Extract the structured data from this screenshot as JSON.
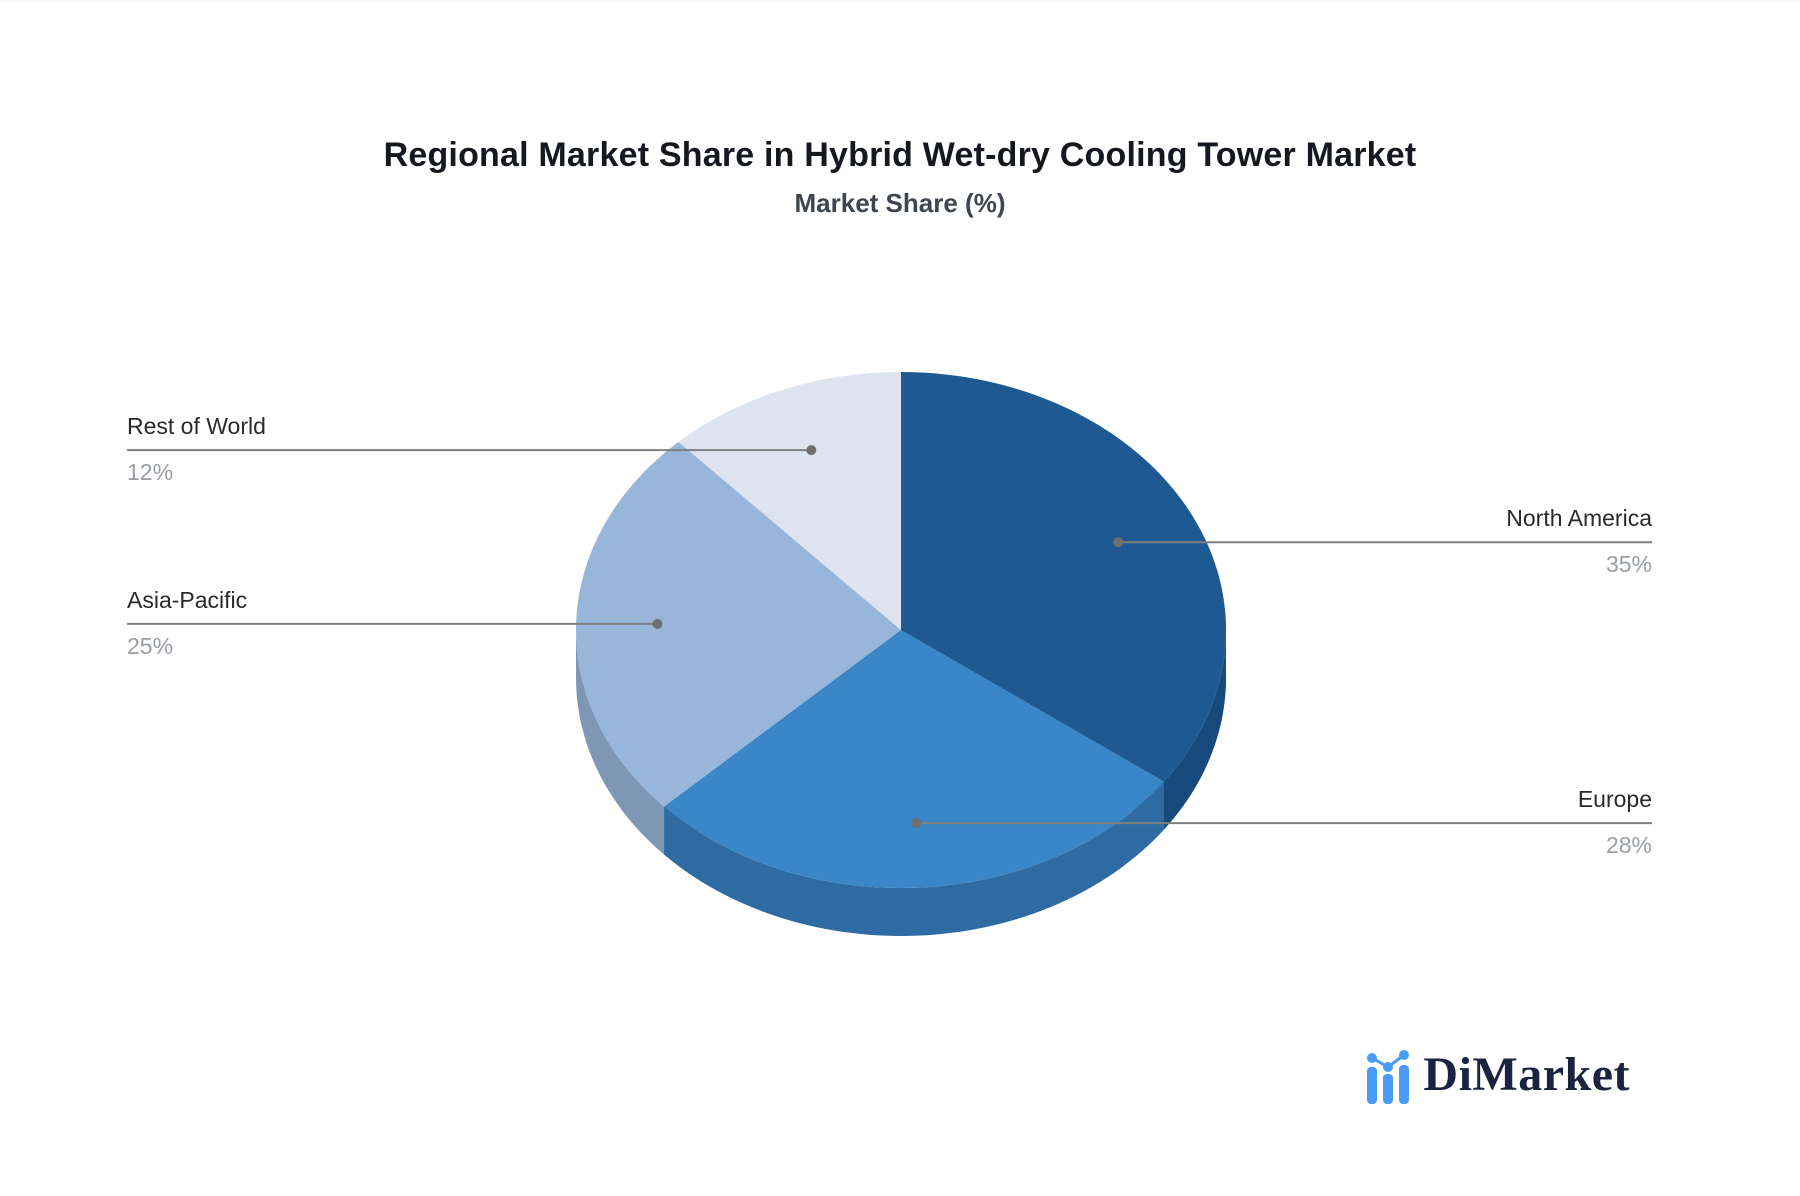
{
  "title": "Regional Market Share in Hybrid Wet-dry Cooling Tower Market",
  "subtitle": "Market Share (%)",
  "brand": {
    "name": "DiMarket",
    "icon": "bar-chart-logo-icon",
    "icon_color": "#4a9bf5",
    "text_color": "#1a2440"
  },
  "chart_data": {
    "type": "pie",
    "title": "Regional Market Share in Hybrid Wet-dry Cooling Tower Market",
    "subtitle": "Market Share (%)",
    "unit": "%",
    "effect": "3d",
    "start_angle_deg": 0,
    "direction": "clockwise",
    "legend": "none",
    "connector_color": "#7f7f7f",
    "connector_dot_color": "#6f6f6f",
    "label_name_color": "#2a2a2a",
    "label_value_color": "#999ea5",
    "slices": [
      {
        "label": "North America",
        "value": 35,
        "display": "35%",
        "color": "#1e5a91",
        "side_color": "#174a7c",
        "label_side": "right"
      },
      {
        "label": "Europe",
        "value": 28,
        "display": "28%",
        "color": "#3a86c6",
        "side_color": "#2e6ba3",
        "label_side": "right"
      },
      {
        "label": "Asia-Pacific",
        "value": 25,
        "display": "25%",
        "color": "#98b6d9",
        "side_color": "#7e97b6",
        "label_side": "left"
      },
      {
        "label": "Rest of World",
        "value": 12,
        "display": "12%",
        "color": "#dde4ef",
        "side_color": "#c2cbd9",
        "label_side": "left"
      }
    ]
  }
}
